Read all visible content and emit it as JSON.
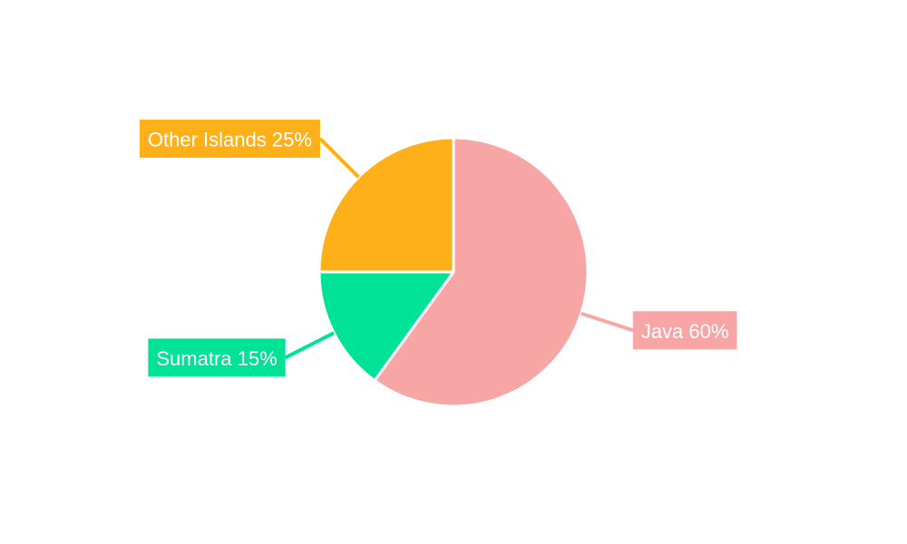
{
  "chart_data": {
    "type": "pie",
    "title": "",
    "slices": [
      {
        "label": "Java 60%",
        "name": "Java",
        "value": 60,
        "color": "#f8a5a6"
      },
      {
        "label": "Sumatra 15%",
        "name": "Sumatra",
        "value": 15,
        "color": "#00e396"
      },
      {
        "label": "Other Islands 25%",
        "name": "Other Islands",
        "value": 25,
        "color": "#feb019"
      }
    ],
    "start_angle_deg": 0,
    "direction": "clockwise",
    "legend": "none",
    "slice_border_color": "#ffffff"
  }
}
